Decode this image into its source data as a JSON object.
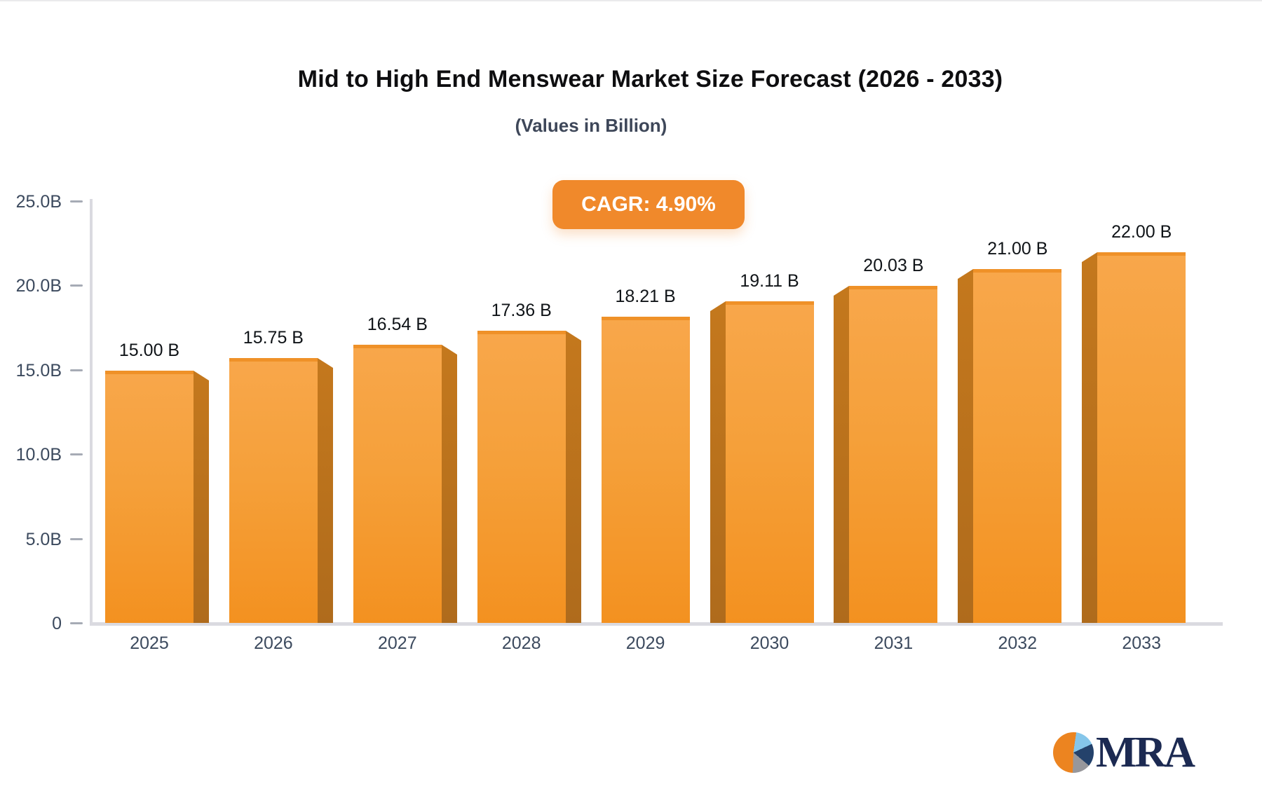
{
  "header": {
    "title": "Mid to High End Menswear Market Size Forecast (2026 - 2033)",
    "subtitle": "(Values in Billion)"
  },
  "badge": {
    "label": "CAGR: 4.90%",
    "background": "#f0892b",
    "text_color": "#ffffff"
  },
  "chart_data": {
    "type": "bar",
    "title": "Mid to High End Menswear Market Size Forecast (2026 - 2033)",
    "subtitle": "(Values in Billion)",
    "cagr_annotation": "CAGR: 4.90%",
    "categories": [
      "2025",
      "2026",
      "2027",
      "2028",
      "2029",
      "2030",
      "2031",
      "2032",
      "2033"
    ],
    "values": [
      15.0,
      15.75,
      16.54,
      17.36,
      18.21,
      19.11,
      20.03,
      21.0,
      22.0
    ],
    "value_labels": [
      "15.00 B",
      "15.75 B",
      "16.54 B",
      "17.36 B",
      "18.21 B",
      "19.11 B",
      "20.03 B",
      "21.00 B",
      "22.00 B"
    ],
    "xlabel": "",
    "ylabel": "",
    "ylim": [
      0,
      25
    ],
    "yticks": [
      {
        "value": 0,
        "label": "0"
      },
      {
        "value": 5,
        "label": "5.0B"
      },
      {
        "value": 10,
        "label": "10.0B"
      },
      {
        "value": 15,
        "label": "15.0B"
      },
      {
        "value": 20,
        "label": "20.0B"
      },
      {
        "value": 25,
        "label": "25.0B"
      }
    ],
    "grid": false,
    "legend": false,
    "bar_style": "3d",
    "colors": {
      "bar_face_top": "#f8a74b",
      "bar_face_bottom": "#f39120",
      "bar_side": "#bc731d",
      "axis_line": "#dadae0",
      "tick_mark": "#a6abb5",
      "tick_text": "#3c4a5e",
      "value_text": "#101418"
    }
  },
  "logo": {
    "text": "MRA",
    "pie_icon_colors": [
      "#ec8420",
      "#85c6ea",
      "#24426b",
      "#97979b"
    ],
    "text_color": "#1c2a52"
  }
}
